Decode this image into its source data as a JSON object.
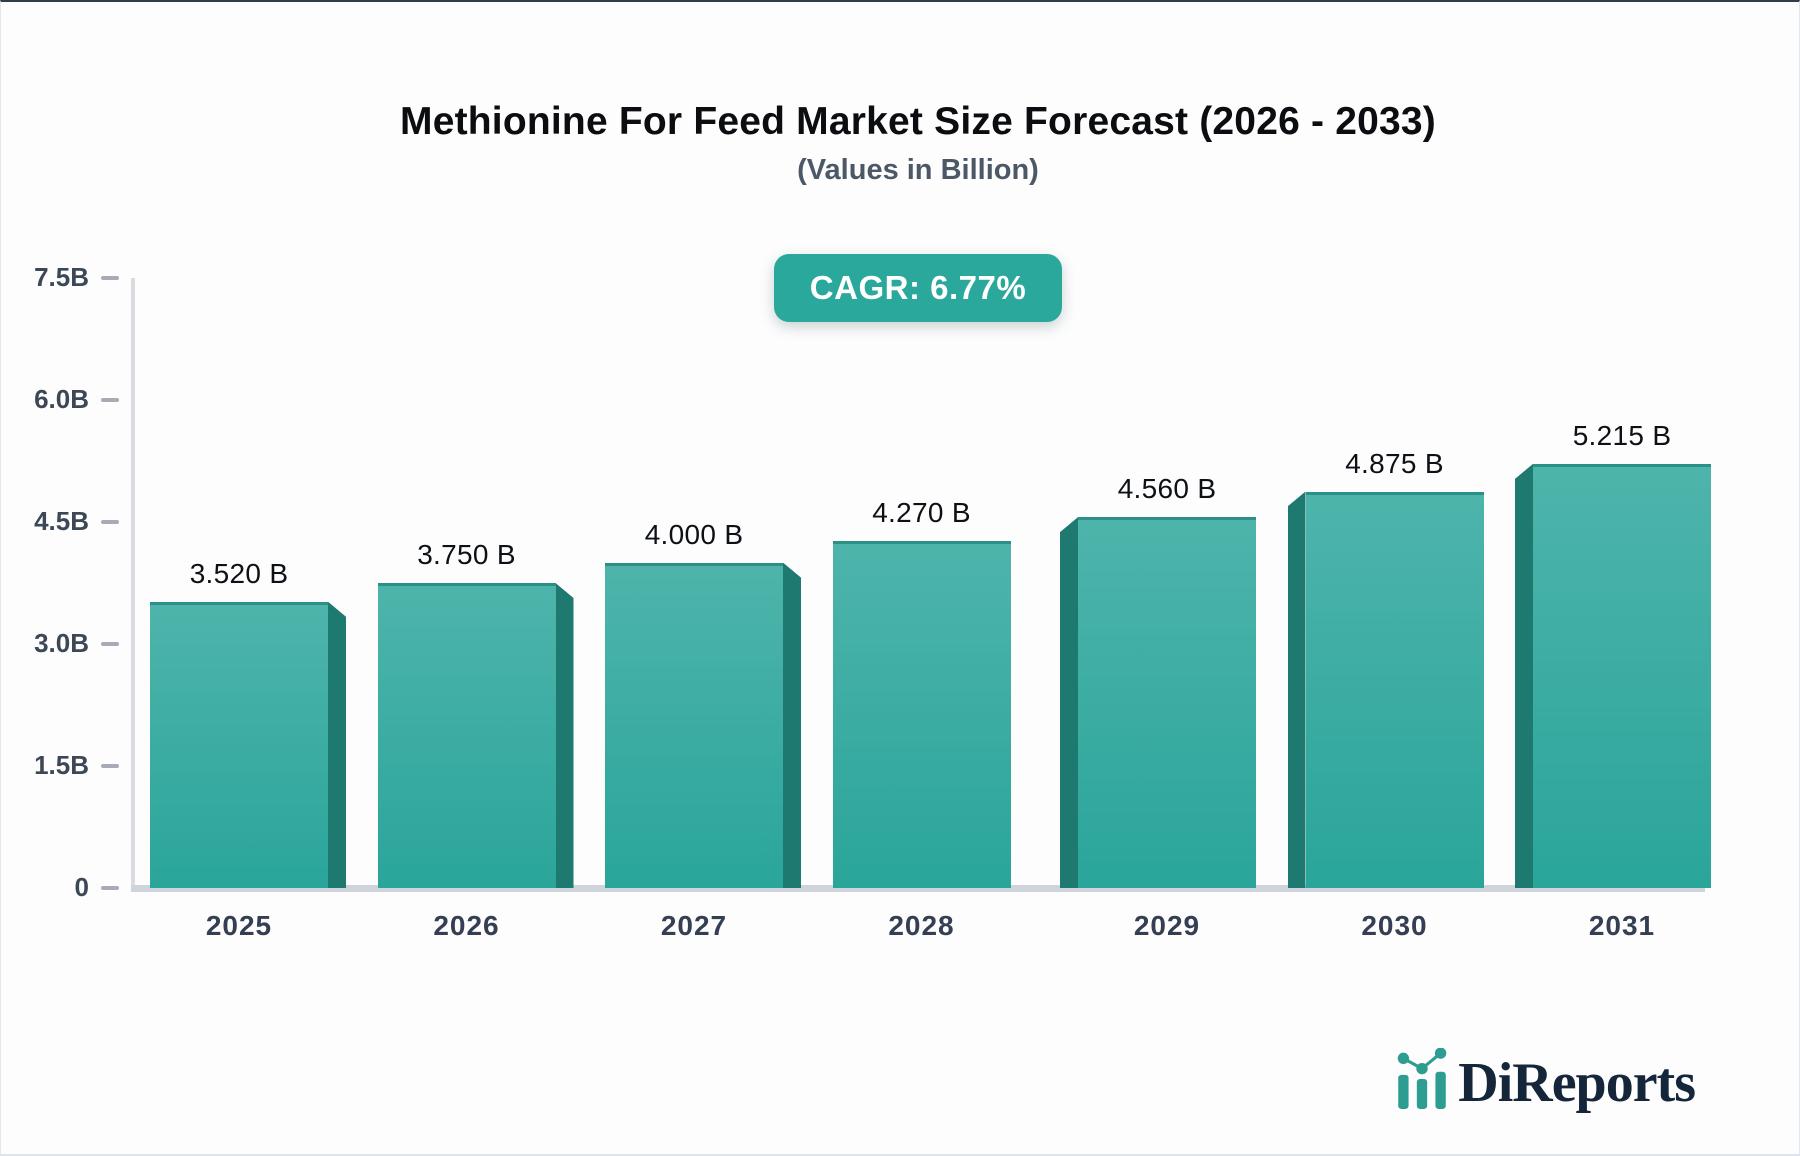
{
  "title": "Methionine For Feed Market Size Forecast (2026 - 2033)",
  "subtitle": "(Values in Billion)",
  "badge": {
    "label": "CAGR: 6.77%"
  },
  "chart_data": {
    "type": "bar",
    "title": "Methionine For Feed Market Size Forecast (2026 - 2033)",
    "subtitle": "(Values in Billion)",
    "categories": [
      "2025",
      "2026",
      "2027",
      "2028",
      "2029",
      "2030",
      "2031"
    ],
    "values": [
      3.52,
      3.75,
      4.0,
      4.27,
      4.56,
      4.875,
      5.215
    ],
    "value_labels": [
      "3.520 B",
      "3.750 B",
      "4.000 B",
      "4.270 B",
      "4.560 B",
      "4.875 B",
      "5.215 B"
    ],
    "unit": "Billion",
    "xlabel": "",
    "ylabel": "",
    "ylim": [
      0,
      7.5
    ],
    "yticks": [
      {
        "label": "0",
        "value": 0
      },
      {
        "label": "1.5B",
        "value": 1.5
      },
      {
        "label": "3.0B",
        "value": 3.0
      },
      {
        "label": "4.5B",
        "value": 4.5
      },
      {
        "label": "6.0B",
        "value": 6.0
      },
      {
        "label": "7.5B",
        "value": 7.5
      }
    ],
    "grid": false,
    "legend": "none",
    "style_3d": "side-extrusion facing center",
    "colors": {
      "bar_top": "#4eb4ab",
      "bar_bottom": "#2aa59a",
      "bar_side": "#1e7a71",
      "axis": "#d9dbe1",
      "baseline": "#cfd3db",
      "tick": "#a6abb5",
      "badge_bg": "#2aa89c",
      "badge_text": "#ffffff",
      "title_text": "#0c0d10",
      "subtitle_text": "#4d5866",
      "logo_navy": "#16263a",
      "logo_teal": "#2d9c91"
    }
  },
  "logo": {
    "text": "DiReports",
    "icon": "mini-bar-line-chart-icon"
  }
}
